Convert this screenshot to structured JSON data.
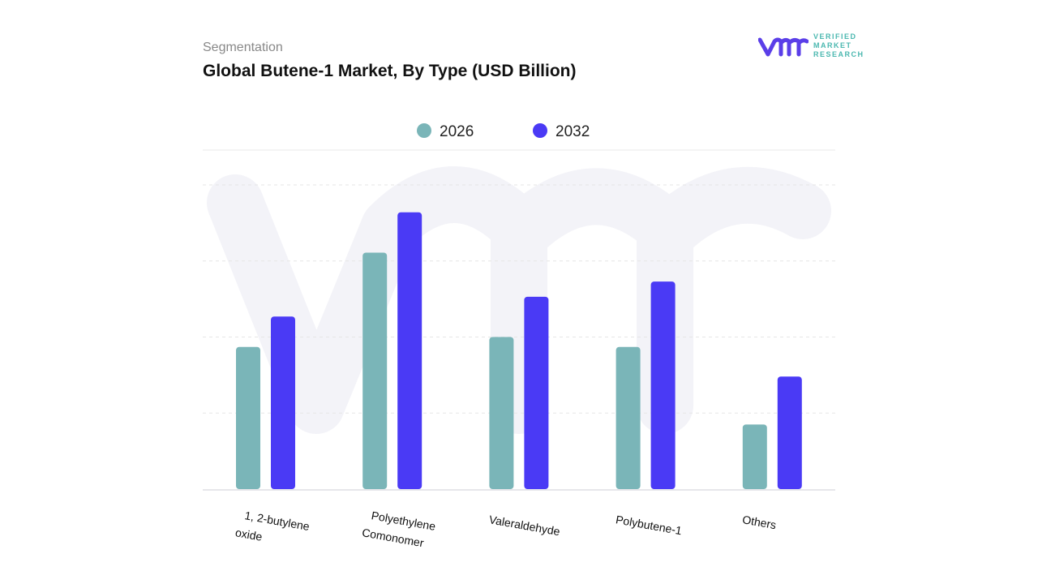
{
  "header": {
    "subtitle": "Segmentation",
    "title": "Global Butene-1 Market, By Type (USD Billion)"
  },
  "logo": {
    "text": "VERIFIED MARKET RESEARCH",
    "line1": "VERIFIED",
    "line2": "MARKET",
    "line3": "RESEARCH"
  },
  "colors": {
    "s2026": "#7ab5b8",
    "s2032": "#4a3af5",
    "logo_purple": "#5a3ee8",
    "logo_teal": "#4bb8b0"
  },
  "chart_data": {
    "type": "bar",
    "title": "Global Butene-1 Market, By Type (USD Billion)",
    "categories": [
      "1, 2-butylene oxide",
      "Polyethylene Comonomer",
      "Valeraldehyde",
      "Polybutene-1",
      "Others"
    ],
    "category_lines": [
      [
        "1, 2-butylene",
        "oxide"
      ],
      [
        "Polyethylene",
        "Comonomer"
      ],
      [
        "Valeraldehyde"
      ],
      [
        "Polybutene-1"
      ],
      [
        "Others"
      ]
    ],
    "series": [
      {
        "name": "2026",
        "color": "#7ab5b8",
        "values": [
          1.87,
          3.11,
          2.0,
          1.87,
          0.85
        ]
      },
      {
        "name": "2032",
        "color": "#4a3af5",
        "values": [
          2.27,
          3.64,
          2.53,
          2.73,
          1.48
        ]
      }
    ],
    "ylim": [
      0,
      4
    ],
    "y_axis_labels": "none",
    "grid": true,
    "legend": "top-center"
  }
}
